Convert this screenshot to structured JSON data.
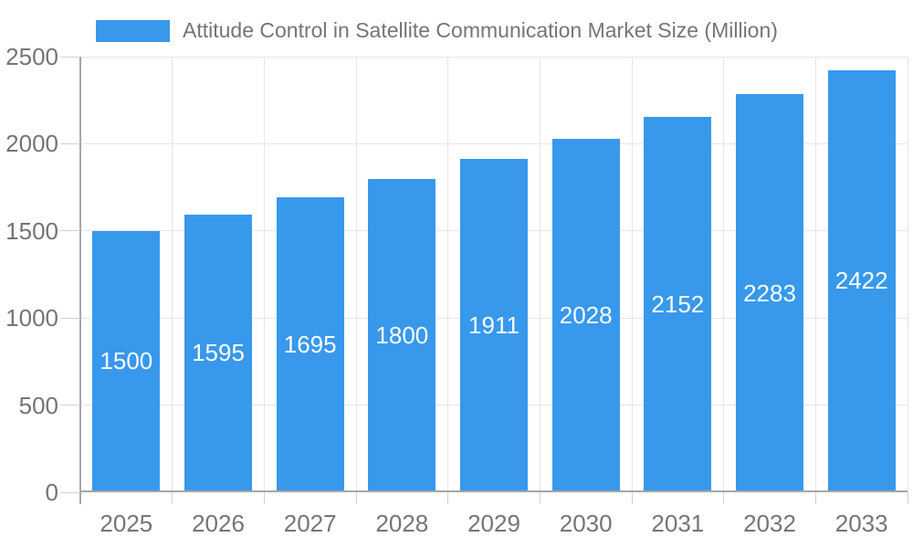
{
  "chart_data": {
    "type": "bar",
    "title": "Attitude Control in Satellite Communication Market Size (Million)",
    "categories": [
      "2025",
      "2026",
      "2027",
      "2028",
      "2029",
      "2030",
      "2031",
      "2032",
      "2033"
    ],
    "values": [
      1500,
      1595,
      1695,
      1800,
      1911,
      2028,
      2152,
      2283,
      2422
    ],
    "xlabel": "",
    "ylabel": "",
    "ylim": [
      0,
      2500
    ],
    "yticks": [
      0,
      500,
      1000,
      1500,
      2000,
      2500
    ],
    "grid": true,
    "legend_position": "top-left",
    "value_label_position": "inside-center"
  },
  "legend": {
    "label": "Attitude Control in Satellite Communication Market Size (Million)"
  },
  "colors": {
    "bar": "#3898EC",
    "axis_text": "#757575",
    "gridline": "#E6E6E6",
    "axis_line": "#A6A6A6",
    "tick": "#D2D2D2",
    "value_label": "#FFFFFF",
    "background": "#FFFFFF"
  }
}
